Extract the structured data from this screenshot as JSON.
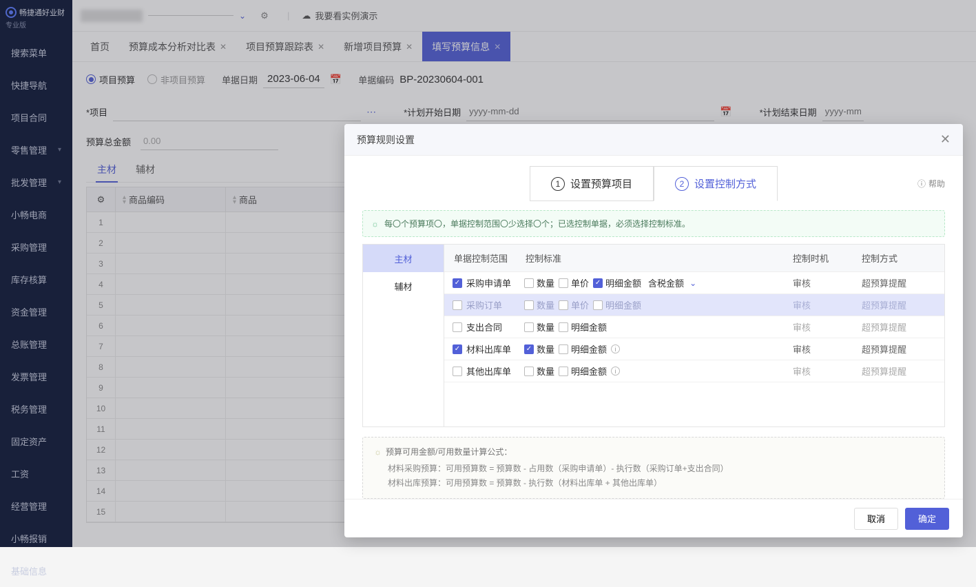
{
  "brand": {
    "name": "畅捷通好业财",
    "edition": "专业版"
  },
  "sidebar": [
    {
      "label": "搜索菜单",
      "expand": false
    },
    {
      "label": "快捷导航",
      "expand": false
    },
    {
      "label": "项目合同",
      "expand": false
    },
    {
      "label": "零售管理",
      "expand": true
    },
    {
      "label": "批发管理",
      "expand": true
    },
    {
      "label": "小畅电商",
      "expand": false
    },
    {
      "label": "采购管理",
      "expand": false
    },
    {
      "label": "库存核算",
      "expand": false
    },
    {
      "label": "资金管理",
      "expand": false
    },
    {
      "label": "总账管理",
      "expand": false
    },
    {
      "label": "发票管理",
      "expand": false
    },
    {
      "label": "税务管理",
      "expand": false
    },
    {
      "label": "固定资产",
      "expand": false
    },
    {
      "label": "工资",
      "expand": false
    },
    {
      "label": "经营管理",
      "expand": false
    },
    {
      "label": "小畅报销",
      "expand": false
    },
    {
      "label": "基础信息",
      "expand": false
    }
  ],
  "topbar": {
    "demo": "我要看实例演示"
  },
  "tabs": [
    {
      "label": "首页",
      "closable": false
    },
    {
      "label": "预算成本分析对比表",
      "closable": true
    },
    {
      "label": "项目预算跟踪表",
      "closable": true
    },
    {
      "label": "新增项目预算",
      "closable": true
    },
    {
      "label": "填写预算信息",
      "closable": true,
      "active": true
    }
  ],
  "form": {
    "radio1": "项目预算",
    "radio2": "非项目预算",
    "bill_date_label": "单据日期",
    "bill_date": "2023-06-04",
    "bill_no_label": "单据编码",
    "bill_no": "BP-20230604-001",
    "project_label": "项目",
    "plan_start_label": "计划开始日期",
    "plan_start_ph": "yyyy-mm-dd",
    "plan_end_label": "计划结束日期",
    "plan_end_ph": "yyyy-mm-dd",
    "total_label": "预算总金额",
    "total_value": "0.00"
  },
  "subtabs": [
    "主材",
    "辅材"
  ],
  "grid": {
    "cols": [
      "商品编码",
      "商品"
    ],
    "row_count": 15
  },
  "modal": {
    "title": "预算规则设置",
    "wiz1": "设置预算项目",
    "wiz2": "设置控制方式",
    "help": "帮助",
    "banner": "每〇个预算项〇，单据控制范围〇少选择〇个；已选控制单据，必须选择控制标准。",
    "side": [
      "主材",
      "辅材"
    ],
    "head": {
      "c1": "单据控制范围",
      "c2": "控制标准",
      "c3": "控制时机",
      "c4": "控制方式"
    },
    "rows": [
      {
        "name": "采购申请单",
        "on": true,
        "std": [
          {
            "label": "数量",
            "on": false
          },
          {
            "label": "单价",
            "on": false
          },
          {
            "label": "明细金额",
            "on": true
          }
        ],
        "extra": "含税金额",
        "dd": true,
        "timing": "审核",
        "mode": "超预算提醒",
        "disabled": false
      },
      {
        "name": "采购订单",
        "on": false,
        "std": [
          {
            "label": "数量",
            "on": false
          },
          {
            "label": "单价",
            "on": false
          },
          {
            "label": "明细金额",
            "on": false
          }
        ],
        "timing": "审核",
        "mode": "超预算提醒",
        "disabled": true
      },
      {
        "name": "支出合同",
        "on": false,
        "std": [
          {
            "label": "数量",
            "on": false
          },
          {
            "label": "明细金额",
            "on": false
          }
        ],
        "timing": "审核",
        "mode": "超预算提醒",
        "disabled": false,
        "muted": true
      },
      {
        "name": "材料出库单",
        "on": true,
        "std": [
          {
            "label": "数量",
            "on": true
          },
          {
            "label": "明细金额",
            "on": false
          }
        ],
        "info": true,
        "timing": "审核",
        "mode": "超预算提醒",
        "disabled": false
      },
      {
        "name": "其他出库单",
        "on": false,
        "std": [
          {
            "label": "数量",
            "on": false
          },
          {
            "label": "明细金额",
            "on": false
          }
        ],
        "info": true,
        "timing": "审核",
        "mode": "超预算提醒",
        "disabled": false,
        "muted": true
      }
    ],
    "formula": {
      "title": "预算可用金额/可用数量计算公式：",
      "l1": "材料采购预算：可用预算数 = 预算数 - 占用数（采购申请单）- 执行数（采购订单+支出合同）",
      "l2": "材料出库预算：可用预算数 = 预算数 - 执行数（材料出库单 + 其他出库单）"
    },
    "cancel": "取消",
    "ok": "确定"
  }
}
